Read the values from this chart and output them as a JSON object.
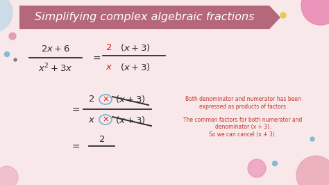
{
  "title": "Simplifying complex algebraic fractions",
  "title_bg": "#b5687a",
  "title_text_color": "#ffffff",
  "bg_color": "#f8e8ea",
  "main_text_color": "#2c2c2c",
  "red_color": "#d62020",
  "annotation_color": "#c0392b",
  "circle_color": "#7ab8d4",
  "annotation1": "Both denominator and numerator has been\nexpressed as products of factors",
  "annotation2": "The common factors for both numerator and\ndenominator (x + 3).\nSo we can cancel (x + 3)."
}
